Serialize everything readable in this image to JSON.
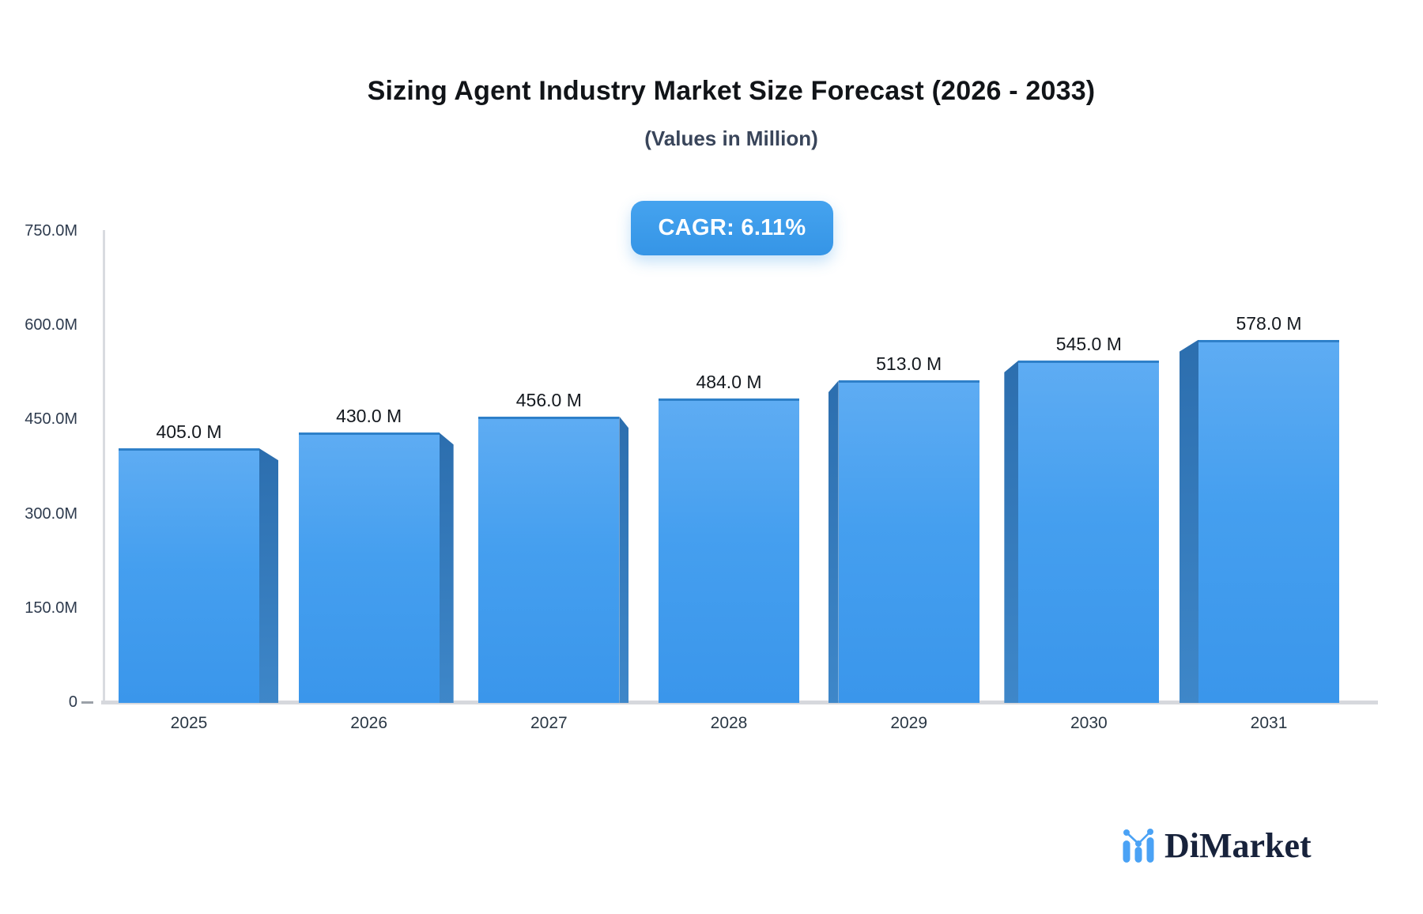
{
  "header": {
    "title": "Sizing Agent Industry Market Size Forecast (2026 - 2033)",
    "subtitle": "(Values in Million)",
    "cagr_badge": "CAGR: 6.11%"
  },
  "brand": {
    "name": "DiMarket",
    "icon": "bar-chart-trend-icon"
  },
  "colors": {
    "accent_blue": "#3B9BE9",
    "bar_fill_top": "#5EACF3",
    "bar_fill_bottom": "#3A96EB",
    "bar_side_face": "#2F73B4",
    "bar_top_edge": "#2E80C9",
    "axis_line": "#D9DBE0",
    "tick_text": "#2E3B4E",
    "value_text": "#14191F",
    "title_text": "#111418",
    "subtitle_text": "#39455A",
    "badge_text": "#FFFFFF",
    "logo_navy": "#17223B",
    "background": "#FFFFFF"
  },
  "chart_data": {
    "type": "bar",
    "title": "Sizing Agent Industry Market Size Forecast (2026 - 2033)",
    "subtitle": "(Values in Million)",
    "unit": "Million",
    "cagr_percent": 6.11,
    "categories": [
      "2025",
      "2026",
      "2027",
      "2028",
      "2029",
      "2030",
      "2031"
    ],
    "values": [
      405,
      430,
      456,
      484,
      513,
      545,
      578
    ],
    "value_labels": [
      "405.0 M",
      "430.0 M",
      "456.0 M",
      "484.0 M",
      "513.0 M",
      "545.0 M",
      "578.0 M"
    ],
    "xlabel": "",
    "ylabel": "",
    "ylim": [
      0,
      750
    ],
    "y_ticks": [
      {
        "value": 750,
        "label": "750.0M"
      },
      {
        "value": 600,
        "label": "600.0M"
      },
      {
        "value": 450,
        "label": "450.0M"
      },
      {
        "value": 300,
        "label": "300.0M"
      },
      {
        "value": 150,
        "label": "150.0M"
      },
      {
        "value": 0,
        "label": "0"
      }
    ],
    "grid": false,
    "legend": false,
    "style": "3d-perspective-bars"
  }
}
